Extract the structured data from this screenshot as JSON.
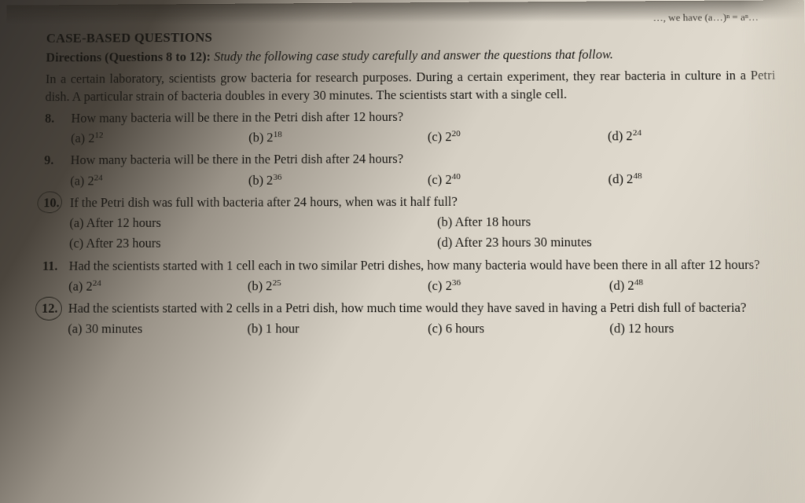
{
  "partial_line": "…, we have (a…)ⁿ = aⁿ…",
  "heading": "CASE-BASED QUESTIONS",
  "directions_bold": "Directions (Questions 8 to 12):",
  "directions_rest": " Study the following case study carefully and answer the questions that follow.",
  "passage": "In a certain laboratory, scientists grow bacteria for research purposes. During a certain experiment, they rear bacteria in culture in a Petri dish. A particular strain of bacteria doubles in every 30 minutes. The scientists start with a single cell.",
  "q8": {
    "text": "How many bacteria will be there in the Petri dish after 12 hours?",
    "a": "(a) 2",
    "ae": "12",
    "b": "(b) 2",
    "be": "18",
    "c": "(c) 2",
    "ce": "20",
    "d": "(d) 2",
    "de": "24"
  },
  "q9": {
    "text": "How many bacteria will be there in the Petri dish after 24 hours?",
    "a": "(a) 2",
    "ae": "24",
    "b": "(b) 2",
    "be": "36",
    "c": "(c) 2",
    "ce": "40",
    "d": "(d) 2",
    "de": "48"
  },
  "q10": {
    "text": "If the Petri dish was full with bacteria after 24 hours, when was it half full?",
    "a": "(a) After 12 hours",
    "b": "(b) After 18 hours",
    "c": "(c) After 23 hours",
    "d": "(d) After 23 hours 30 minutes"
  },
  "q11": {
    "text": "Had the scientists started with 1 cell each in two similar Petri dishes, how many bacteria would have been there in all after 12 hours?",
    "a": "(a) 2",
    "ae": "24",
    "b": "(b) 2",
    "be": "25",
    "c": "(c) 2",
    "ce": "36",
    "d": "(d) 2",
    "de": "48"
  },
  "q12": {
    "text": "Had the scientists started with 2 cells in a Petri dish, how much time would they have saved in having a Petri dish full of bacteria?",
    "a": "(a) 30 minutes",
    "b": "(b) 1 hour",
    "c": "(c) 6 hours",
    "d": "(d) 12 hours"
  }
}
